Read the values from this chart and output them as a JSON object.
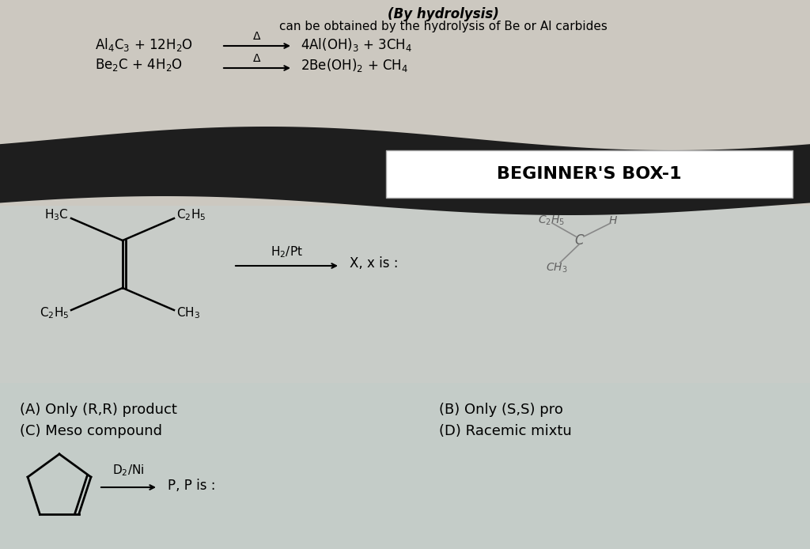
{
  "bg_top": "#c8c4bc",
  "bg_dark_banner": "#2a2a2a",
  "bg_bottom": "#c0c8c4",
  "box_bg": "#f5f5f5",
  "title_hydrolysis": "(By hydrolysis)",
  "line_obtained": "can be obtained by the hydrolysis of Be or Al carbides",
  "eq1_left": "Al$_4$C$_3$ + 12H$_2$O",
  "eq1_right": "4Al(OH)$_3$ + 3CH$_4$",
  "eq2_left": "Be$_2$C + 4H$_2$O",
  "eq2_right": "2Be(OH)$_2$ + CH$_4$",
  "delta": "Δ",
  "box_title": "BEGINNER'S BOX-1",
  "reaction_label": "H$_2$/Pt",
  "reaction_product": "X, x is :",
  "option_A": "(A) Only (R,R) product",
  "option_B": "(B) Only (S,S) pro",
  "option_C": "(C) Meso compound",
  "option_D": "(D) Racemic mixtu",
  "reaction2_label": "D$_2$/Ni",
  "reaction2_product": "P, P is :",
  "h3c_label": "H$_3$C",
  "c2h5_label_top": "C$_2$H$_5$",
  "c2h5_label_bot": "C$_2$H$_5$",
  "ch3_label": "CH$_3$",
  "c2h5_right": "C$_2$H$_5$",
  "h_right": "H",
  "ch3_right": "CH$_3$"
}
